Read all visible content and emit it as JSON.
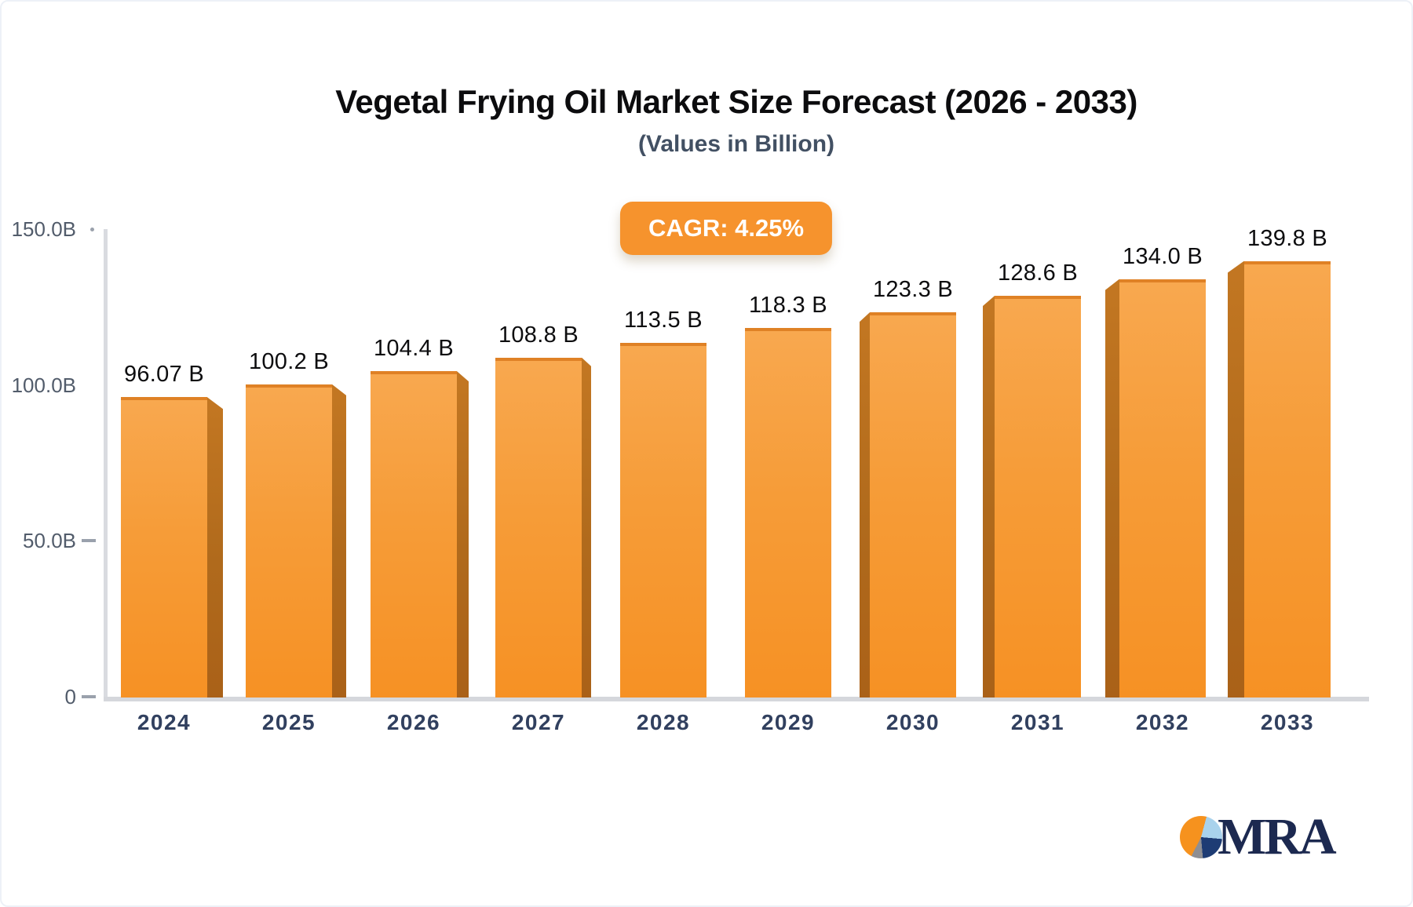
{
  "title": "Vegetal Frying Oil Market Size Forecast (2026 - 2033)",
  "subtitle": "(Values in Billion)",
  "cagr_badge": "CAGR: 4.25%",
  "logo": {
    "text": "MRA",
    "pie_colors": [
      "#f6921e",
      "#a9d2ec",
      "#1e3c74",
      "#8e8e92"
    ]
  },
  "colors": {
    "bar_face_top": "#f8a84f",
    "bar_face_bottom": "#f69124",
    "bar_top_edge": "#df8125",
    "bar_side": "#b06a1c",
    "badge": "#f6932d",
    "axis_line": "#d5d7dc",
    "axis_label": "#525c6b",
    "category_label": "#31405f",
    "value_label": "#0d0d0f"
  },
  "chart_data": {
    "type": "bar",
    "title": "Vegetal Frying Oil Market Size Forecast (2026 - 2033)",
    "subtitle": "(Values in Billion)",
    "annotation": "CAGR: 4.25%",
    "categories": [
      "2024",
      "2025",
      "2026",
      "2027",
      "2028",
      "2029",
      "2030",
      "2031",
      "2032",
      "2033"
    ],
    "values": [
      96.07,
      100.2,
      104.4,
      108.8,
      113.5,
      118.3,
      123.3,
      128.6,
      134.0,
      139.8
    ],
    "value_labels": [
      "96.07 B",
      "100.2 B",
      "104.4 B",
      "108.8 B",
      "113.5 B",
      "118.3 B",
      "123.3 B",
      "128.6 B",
      "134.0 B",
      "139.8 B"
    ],
    "xlabel": "",
    "ylabel": "",
    "ylim": [
      0,
      150
    ],
    "ytick_values": [
      150,
      100,
      50,
      0
    ],
    "ytick_labels": [
      "150.0B",
      "100.0B",
      "50.0B",
      "0"
    ],
    "grid": false,
    "legend": "none",
    "style": "3d-perspective-bars"
  }
}
